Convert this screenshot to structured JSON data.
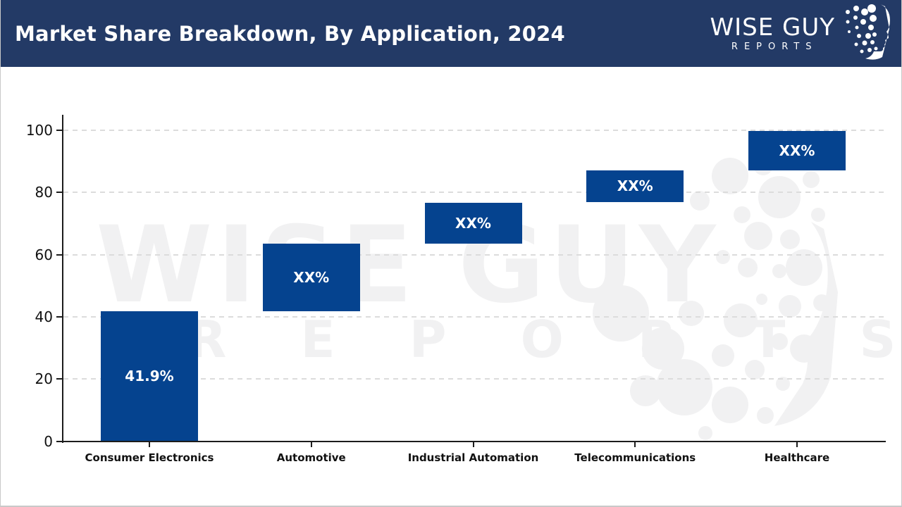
{
  "header": {
    "title": "Market Share Breakdown, By Application, 2024",
    "bg_color": "#233a66",
    "logo": {
      "line1": "WISE GUY",
      "line2": "REPORTS"
    }
  },
  "watermark": {
    "line1": "WISE GUY",
    "line2": "R E P O R T S"
  },
  "chart_data": {
    "type": "bar",
    "subtype": "waterfall-floating-bars",
    "title": "Market Share Breakdown, By Application, 2024",
    "categories": [
      "Consumer Electronics",
      "Automotive",
      "Industrial Automation",
      "Telecommunications",
      "Healthcare"
    ],
    "segments": [
      {
        "category": "Consumer Electronics",
        "start": 0,
        "end": 41.9,
        "label": "41.9%"
      },
      {
        "category": "Automotive",
        "start": 41.9,
        "end": 63.5,
        "label": "XX%"
      },
      {
        "category": "Industrial Automation",
        "start": 63.5,
        "end": 76.6,
        "label": "XX%"
      },
      {
        "category": "Telecommunications",
        "start": 77.0,
        "end": 87.0,
        "label": "XX%"
      },
      {
        "category": "Healthcare",
        "start": 87.0,
        "end": 99.8,
        "label": "XX%"
      }
    ],
    "y_ticks": [
      0,
      20,
      40,
      60,
      80,
      100
    ],
    "ylim": [
      0,
      105
    ],
    "xlabel": "",
    "ylabel": "",
    "grid": true,
    "gridline_style": "dashed",
    "bar_color": "#05438f",
    "bar_label_color": "#ffffff",
    "axis_color": "#1c1c1c",
    "legend": "none"
  }
}
